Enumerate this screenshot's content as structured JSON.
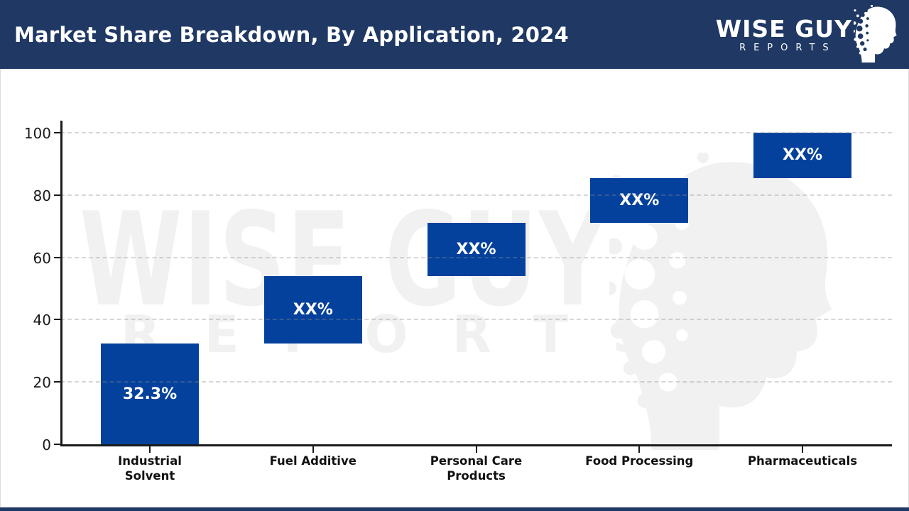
{
  "header": {
    "title": "Market Share Breakdown, By Application, 2024",
    "bg_color": "#1f3864"
  },
  "logo": {
    "line1": "WISE GUY",
    "line2": "REPORTS",
    "color": "#ffffff"
  },
  "watermark": {
    "line1": "WISE GUY",
    "line2": "REPORTS",
    "color": "#f1f1f1"
  },
  "chart_data": {
    "type": "bar",
    "subtype": "waterfall",
    "title": "Market Share Breakdown, By Application, 2024",
    "xlabel": "",
    "ylabel": "",
    "ylim": [
      0,
      100
    ],
    "yticks": [
      0,
      20,
      40,
      60,
      80,
      100
    ],
    "grid": "horizontal-dashed",
    "legend": "none",
    "bar_color": "#04419c",
    "categories": [
      "Industrial Solvent",
      "Fuel Additive",
      "Personal Care Products",
      "Food Processing",
      "Pharmaceuticals"
    ],
    "segments": [
      {
        "category": "Industrial Solvent",
        "start": 0,
        "end": 32.3,
        "label": "32.3%"
      },
      {
        "category": "Fuel Additive",
        "start": 32.3,
        "end": 54,
        "label": "XX%"
      },
      {
        "category": "Personal Care Products",
        "start": 54,
        "end": 71,
        "label": "XX%"
      },
      {
        "category": "Food Processing",
        "start": 71,
        "end": 85.5,
        "label": "XX%"
      },
      {
        "category": "Pharmaceuticals",
        "start": 85.5,
        "end": 100,
        "label": "XX%"
      }
    ]
  }
}
